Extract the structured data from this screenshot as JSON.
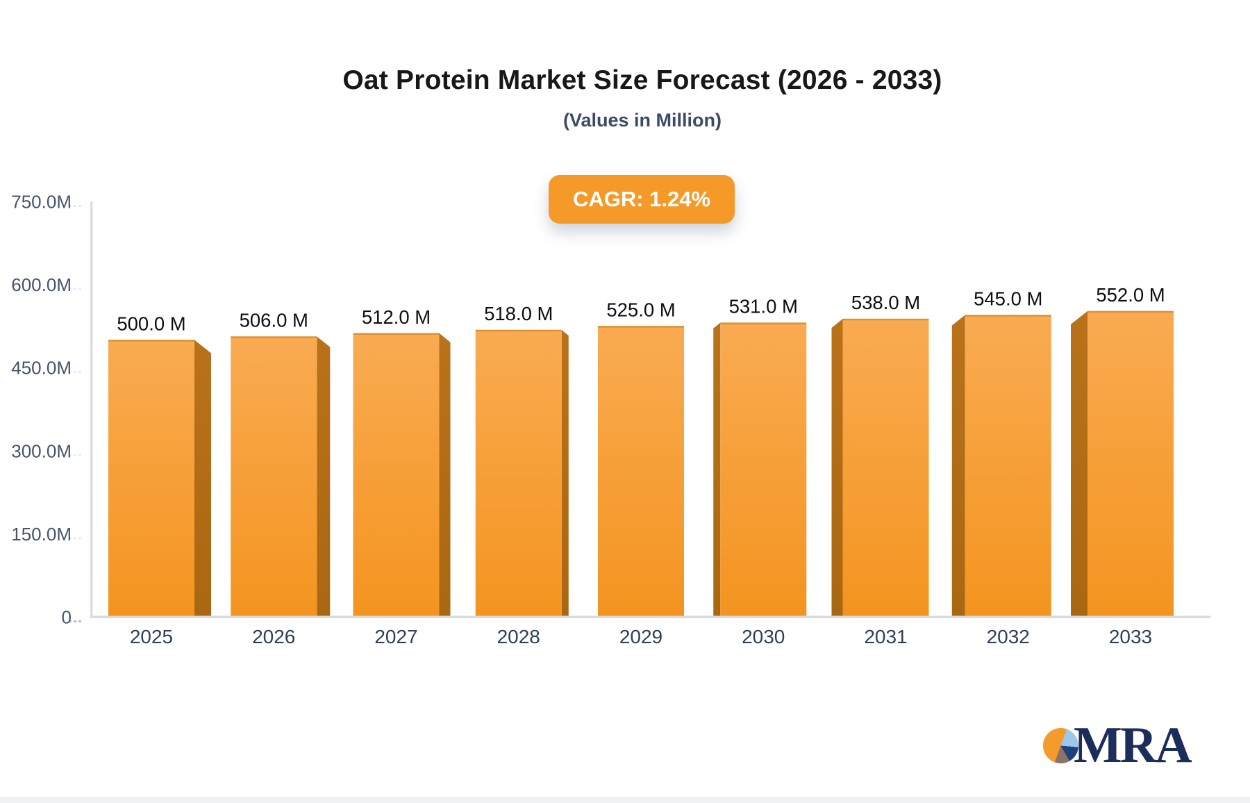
{
  "header": {
    "title": "Oat Protein Market Size Forecast (2026 - 2033)",
    "subtitle": "(Values in Million)"
  },
  "badge": {
    "label": "CAGR: 1.24%"
  },
  "chart_data": {
    "type": "bar",
    "title": "Oat Protein Market Size Forecast (2026 - 2033)",
    "subtitle": "(Values in Million)",
    "unit": "Million",
    "cagr": "CAGR: 1.24%",
    "categories": [
      "2025",
      "2026",
      "2027",
      "2028",
      "2029",
      "2030",
      "2031",
      "2032",
      "2033"
    ],
    "values": [
      500,
      506,
      512,
      518,
      525,
      531,
      538,
      545,
      552
    ],
    "value_labels": [
      "500.0 M",
      "506.0 M",
      "512.0 M",
      "518.0 M",
      "525.0 M",
      "531.0 M",
      "538.0 M",
      "545.0 M",
      "552.0 M"
    ],
    "ylim": [
      0,
      750
    ],
    "y_ticks": [
      {
        "label": "750.0M",
        "value": 750
      },
      {
        "label": "600.0M",
        "value": 600
      },
      {
        "label": "450.0M",
        "value": 450
      },
      {
        "label": "300.0M",
        "value": 300
      },
      {
        "label": "150.0M",
        "value": 150
      },
      {
        "label": "0",
        "value": 0
      }
    ],
    "grid": false,
    "legend": "none",
    "colors": {
      "bar_face_top": "#f9ab52",
      "bar_face_bottom": "#f4941f",
      "bar_top_edge": "#da8c2e",
      "bar_side": "#b9721a",
      "bar_side_dark": "#aa6711",
      "axis_line": "#dcdde2",
      "baseline": "#d9dade",
      "tick_dash": "#b6bac2",
      "tick_dash_faint": "#e4eaf1",
      "y_label": "#46536b",
      "x_label": "#2f3e58",
      "value_label": "#0c0e12",
      "accent": "#f59929"
    }
  },
  "logo": {
    "text": "MRA",
    "icon": "pie-chart-icon"
  }
}
